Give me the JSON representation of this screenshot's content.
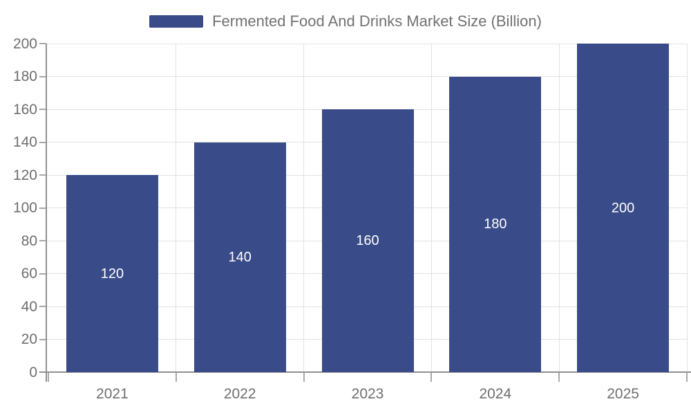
{
  "legend": {
    "label": "Fermented Food And Drinks Market Size (Billion)"
  },
  "colors": {
    "bar": "#394b89",
    "grid": "#e2e2e2",
    "axis": "#8f8f8f",
    "tick": "#a8a8a8",
    "text": "#6e6e6e",
    "legend_text": "#717171",
    "value_label": "#ffffff",
    "background": "#ffffff"
  },
  "chart_data": {
    "type": "bar",
    "title": "Fermented Food And Drinks Market Size (Billion)",
    "series_name": "Fermented Food And Drinks Market Size (Billion)",
    "categories": [
      "2021",
      "2022",
      "2023",
      "2024",
      "2025"
    ],
    "values": [
      120,
      140,
      160,
      180,
      200
    ],
    "value_labels": [
      "120",
      "140",
      "160",
      "180",
      "200"
    ],
    "xlabel": "",
    "ylabel": "",
    "ylim": [
      0,
      200
    ],
    "ytick_step": 20,
    "ytick_labels": [
      "0",
      "20",
      "40",
      "60",
      "80",
      "100",
      "120",
      "140",
      "160",
      "180",
      "200"
    ],
    "grid": true,
    "legend_position": "top-center",
    "value_label_position": "inside-center"
  }
}
